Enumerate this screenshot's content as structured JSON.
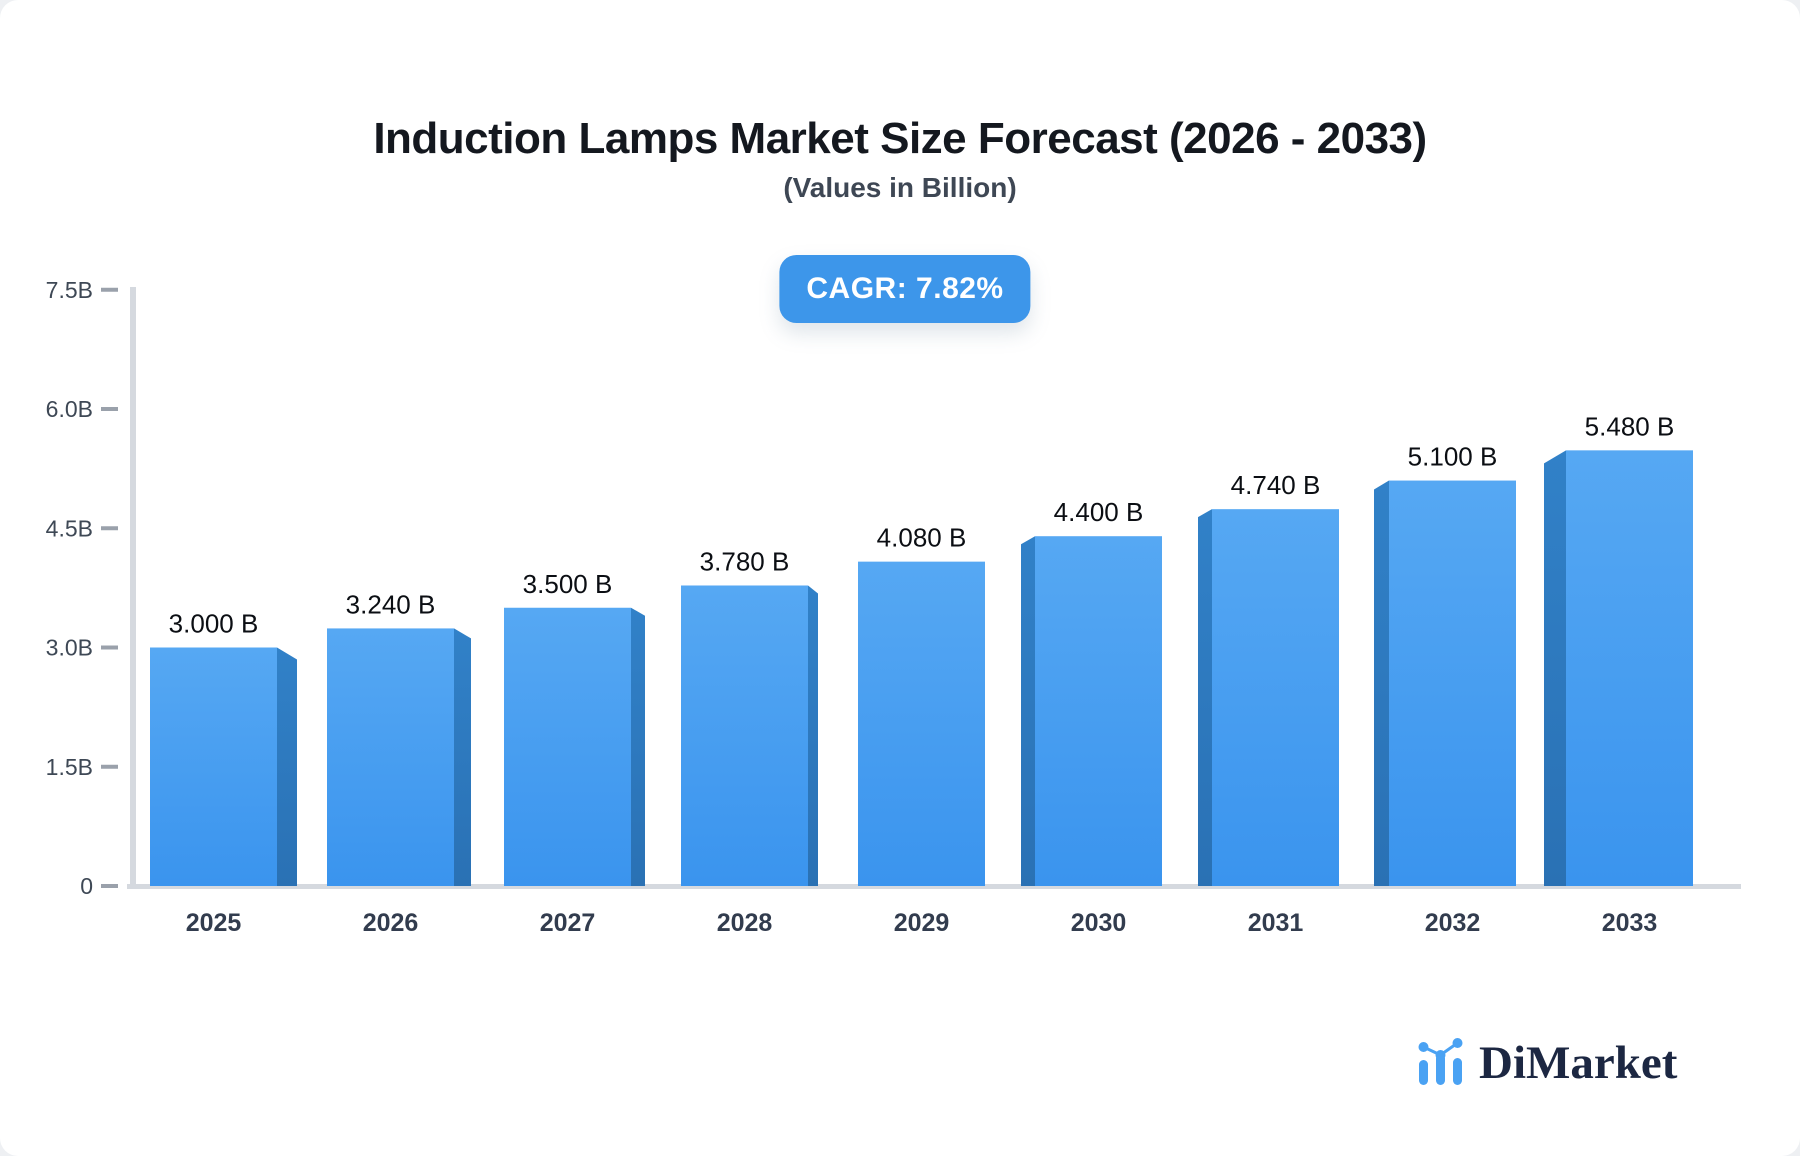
{
  "chart_data": {
    "type": "bar",
    "style": "3d-perspective-columns",
    "title": "Induction Lamps Market Size Forecast (2026 - 2033)",
    "subtitle": "(Values in Billion)",
    "annotation": "CAGR: 7.82%",
    "categories": [
      "2025",
      "2026",
      "2027",
      "2028",
      "2029",
      "2030",
      "2031",
      "2032",
      "2033"
    ],
    "values": [
      3.0,
      3.24,
      3.5,
      3.78,
      4.08,
      4.4,
      4.74,
      5.1,
      5.48
    ],
    "value_labels": [
      "3.000 B",
      "3.240 B",
      "3.500 B",
      "3.780 B",
      "4.080 B",
      "4.400 B",
      "4.740 B",
      "5.100 B",
      "5.480 B"
    ],
    "unit": "Billion",
    "xlabel": "",
    "ylabel": "",
    "ylim": [
      0,
      7.5
    ],
    "ytick_values": [
      0,
      1.5,
      3.0,
      4.5,
      6.0,
      7.5
    ],
    "ytick_labels": [
      "0",
      "1.5B",
      "3.0B",
      "4.5B",
      "6.0B",
      "7.5B"
    ],
    "grid": false,
    "legend": "none",
    "bar_face_color_top": "#56a8f3",
    "bar_face_color_bottom": "#3a94ee",
    "bar_side_color_top": "#3181c8",
    "bar_side_color_bottom": "#2a71b4"
  },
  "badge": {
    "background": "#3d96ea",
    "text_color": "#ffffff"
  },
  "axes": {
    "axis_line_color": "#d5d9df",
    "tick_mark_color": "#9aa1ab",
    "ytick_label_color": "#3e4855",
    "category_label_color": "#323c4e",
    "value_label_color": "#0b0e13"
  },
  "branding": {
    "logo_text": "DiMarket",
    "logo_text_color": "#1c2742",
    "logo_icon": "mini-bar-chart-with-trend-dots",
    "logo_icon_color": "#4aa2f3"
  }
}
